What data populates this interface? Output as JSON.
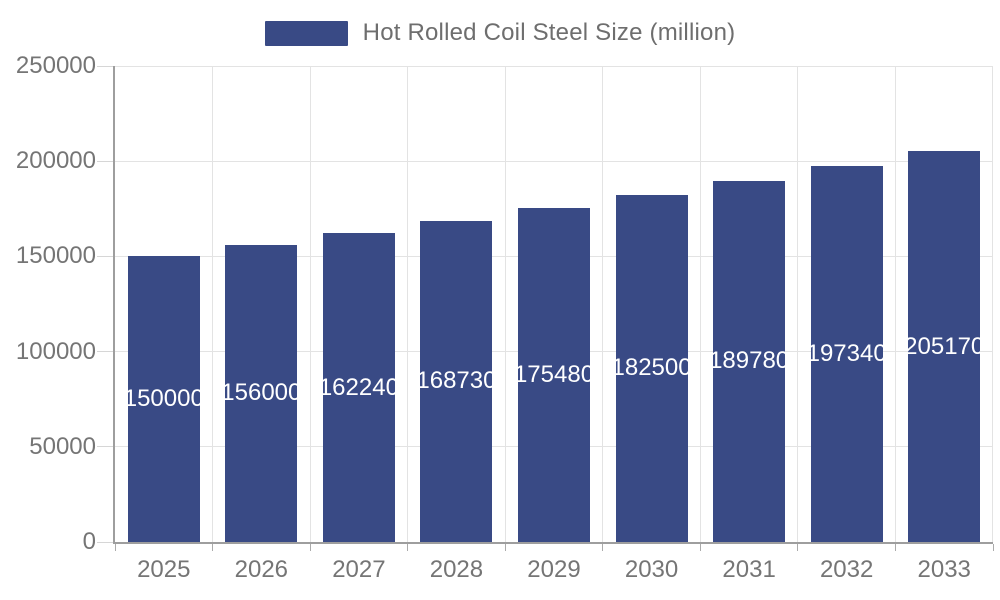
{
  "legend": {
    "label": "Hot Rolled Coil Steel Size (million)",
    "swatch_color": "#394A85"
  },
  "chart_data": {
    "type": "bar",
    "title": "Hot Rolled Coil Steel Size (million)",
    "series_name": "Hot Rolled Coil Steel Size (million)",
    "categories": [
      "2025",
      "2026",
      "2027",
      "2028",
      "2029",
      "2030",
      "2031",
      "2032",
      "2033"
    ],
    "values": [
      150000,
      156000,
      162240,
      168730,
      175480,
      182500,
      189780,
      197340,
      205170
    ],
    "xlabel": "",
    "ylabel": "",
    "ylim": [
      0,
      250000
    ],
    "yticks": [
      0,
      50000,
      100000,
      150000,
      200000,
      250000
    ],
    "grid": true,
    "legend_position": "top-center",
    "value_labels_inside_bars": true,
    "colors": {
      "bar": "#394A85",
      "value_label": "#FFFFFF",
      "axis_line": "#9E9E9E",
      "grid_line": "#E3E3E3",
      "y_tick_mark": "#D6D6D6",
      "x_tick_mark": "#ABABAB",
      "tick_label": "#757575",
      "legend_text": "#6E6E6E"
    }
  }
}
